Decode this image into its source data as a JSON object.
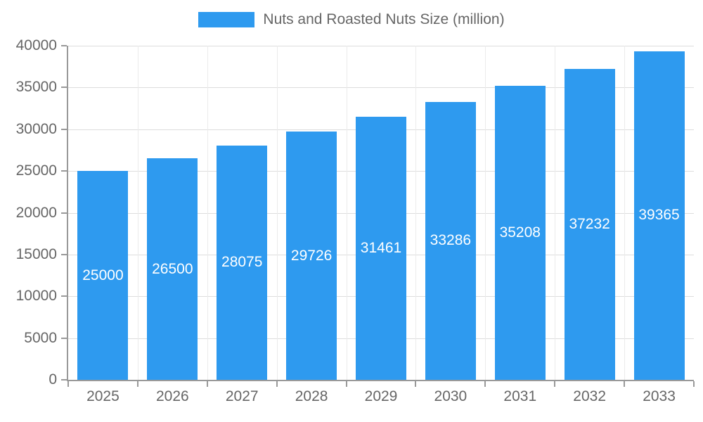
{
  "chart_data": {
    "type": "bar",
    "title": "Nuts and Roasted Nuts Size (million)",
    "categories": [
      "2025",
      "2026",
      "2027",
      "2028",
      "2029",
      "2030",
      "2031",
      "2032",
      "2033"
    ],
    "values": [
      25000,
      26500,
      28075,
      29726,
      31461,
      33286,
      35208,
      37232,
      39365
    ],
    "value_labels": [
      "25000",
      "26500",
      "28075",
      "29726",
      "31461",
      "33286",
      "35208",
      "37232",
      "39365"
    ],
    "ylim": [
      0,
      40000
    ],
    "yticks": [
      0,
      5000,
      10000,
      15000,
      20000,
      25000,
      30000,
      35000,
      40000
    ],
    "grid": true,
    "legend_position": "top",
    "colors": {
      "bar": "#2E9AEF",
      "grid": "#DDDDDD",
      "vgrid": "#EBEBEB",
      "axis": "#999999",
      "tick_label": "#666666",
      "value_label": "#FFFFFF",
      "legend_text": "#666666"
    }
  }
}
